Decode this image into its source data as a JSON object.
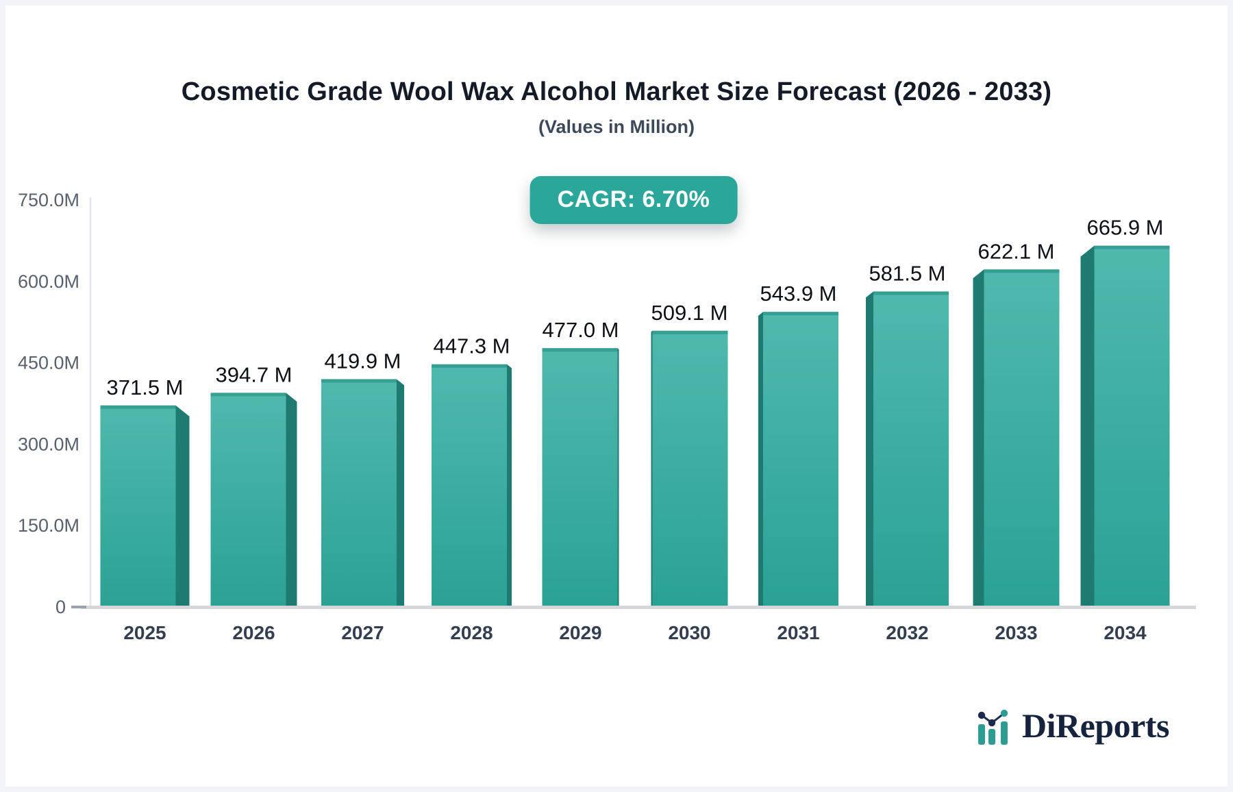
{
  "header": {
    "title": "Cosmetic Grade Wool Wax Alcohol Market Size Forecast (2026 - 2033)",
    "subtitle": "(Values in Million)"
  },
  "cagr": {
    "label": "CAGR: 6.70%",
    "value": "6.70%"
  },
  "chart_data": {
    "type": "bar",
    "title": "Cosmetic Grade Wool Wax Alcohol Market Size Forecast (2026 - 2033)",
    "subtitle": "(Values in Million)",
    "categories": [
      "2025",
      "2026",
      "2027",
      "2028",
      "2029",
      "2030",
      "2031",
      "2032",
      "2033",
      "2034"
    ],
    "values": [
      371.5,
      394.7,
      419.9,
      447.3,
      477.0,
      509.1,
      543.9,
      581.5,
      622.1,
      665.9
    ],
    "value_labels": [
      "371.5 M",
      "394.7 M",
      "419.9 M",
      "447.3 M",
      "477.0 M",
      "509.1 M",
      "543.9 M",
      "581.5 M",
      "622.1 M",
      "665.9 M"
    ],
    "unit": "Million",
    "y_ticks": [
      {
        "label": "750.0M",
        "value": 750
      },
      {
        "label": "600.0M",
        "value": 600
      },
      {
        "label": "450.0M",
        "value": 450
      },
      {
        "label": "300.0M",
        "value": 300
      },
      {
        "label": "150.0M",
        "value": 150
      },
      {
        "label": "0",
        "value": 0
      }
    ],
    "ylim": [
      0,
      750
    ],
    "grid": false,
    "legend": false,
    "style": "3d-bars-center-perspective"
  },
  "colors": {
    "bar_face_top": "#4fb9ac",
    "bar_face_bottom": "#2aa293",
    "bar_top_cap": "#379e92",
    "bar_side": "#1f7b71",
    "badge_bg": "#2ba69b",
    "badge_text": "#ffffff",
    "baseline": "#d5d7db",
    "axis_line": "#e5e7ec",
    "tick_dash": "#9aa2ab",
    "y_tick_text": "#59616e",
    "x_tick_text": "#333f4f",
    "value_text": "#0d1117",
    "title_text": "#141b27",
    "logo_navy": "#1b2b4d",
    "logo_teal": "#2d9c91"
  },
  "branding": {
    "logo_text": "DiReports"
  }
}
